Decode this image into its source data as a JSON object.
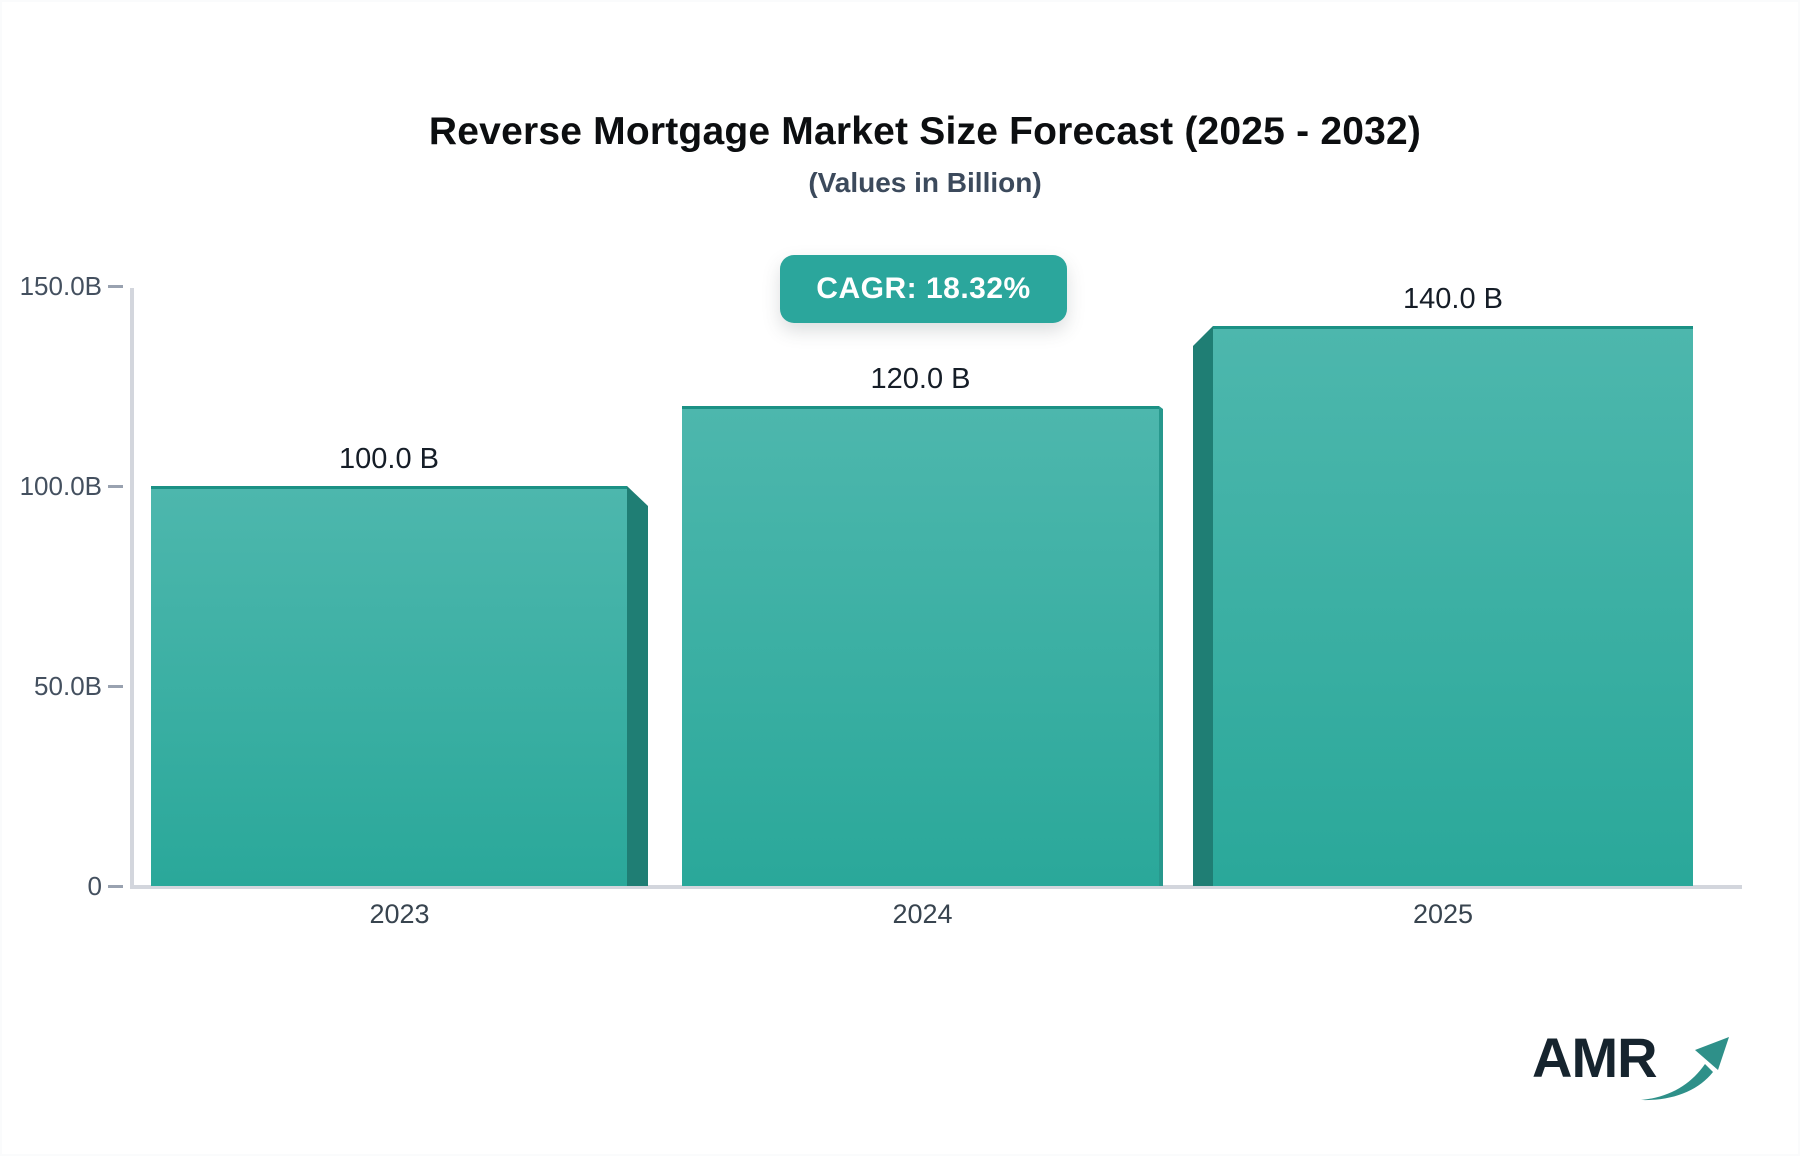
{
  "chart_data": {
    "type": "bar",
    "title": "Reverse Mortgage Market Size Forecast (2025 - 2032)",
    "subtitle": "(Values in Billion)",
    "cagr_label": "CAGR: 18.32%",
    "categories": [
      "2023",
      "2024",
      "2025"
    ],
    "values": [
      100.0,
      120.0,
      140.0
    ],
    "value_labels": [
      "100.0 B",
      "120.0 B",
      "140.0 B"
    ],
    "ylim": [
      0,
      150
    ],
    "y_ticks": [
      {
        "label": "150.0B",
        "value": 150
      },
      {
        "label": "100.0B",
        "value": 100
      },
      {
        "label": "50.0B",
        "value": 50
      },
      {
        "label": "0",
        "value": 0
      }
    ],
    "grid": false,
    "legend": null,
    "bar_style": "3d-beveled-gradient"
  },
  "logo": {
    "text": "AMR",
    "icon": "growth-arrow-icon"
  },
  "colors": {
    "bar_gradient_top": "#4DB7AD",
    "bar_gradient_bottom": "#2AA89A",
    "bar_top_edge": "#1B9185",
    "bar_side_shade": "#1F7E74",
    "bar_thin_edge": "#28988D",
    "badge_bg": "#2BA69C",
    "badge_text": "#FFFFFF",
    "axis_line": "#D3D6DD",
    "tick_mark": "#99A2B0",
    "axis_text": "#44505F",
    "title_text": "#0C0E10",
    "subtitle_text": "#3C4A5C",
    "logo_text": "#16242E",
    "logo_arrow": "#2E9089"
  }
}
